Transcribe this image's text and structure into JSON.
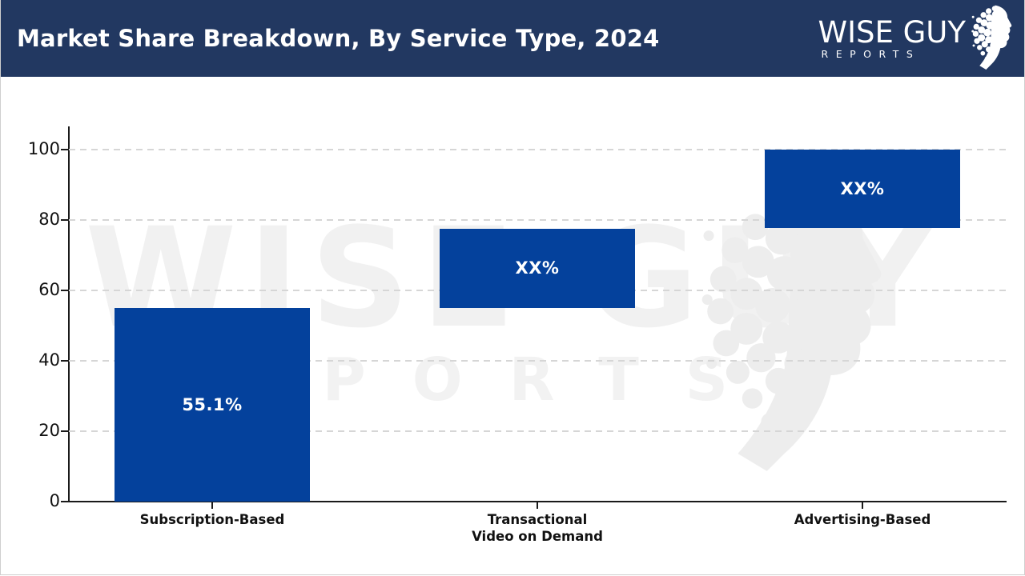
{
  "header": {
    "title": "Market Share Breakdown, By Service Type, 2024",
    "logo_line1": "WISE GUY",
    "logo_line2": "REPORTS",
    "bg_color": "#223861"
  },
  "watermark": {
    "line1": "WISE GUY",
    "line2": "REPORTS"
  },
  "chart_data": {
    "type": "bar",
    "subtype": "floating-waterfall",
    "title": "Market Share Breakdown, By Service Type, 2024",
    "categories": [
      "Subscription-Based",
      "Transactional\nVideo on Demand",
      "Advertising-Based"
    ],
    "bars": [
      {
        "label": "55.1%",
        "start": 0,
        "end": 55.1
      },
      {
        "label": "XX%",
        "start": 55.1,
        "end": 77.6
      },
      {
        "label": "XX%",
        "start": 77.7,
        "end": 100
      }
    ],
    "yticks": [
      0,
      20,
      40,
      60,
      80,
      100
    ],
    "ylim": [
      0,
      105
    ],
    "bar_color": "#04419c",
    "grid": "dashed-horizontal",
    "legend": "none"
  }
}
